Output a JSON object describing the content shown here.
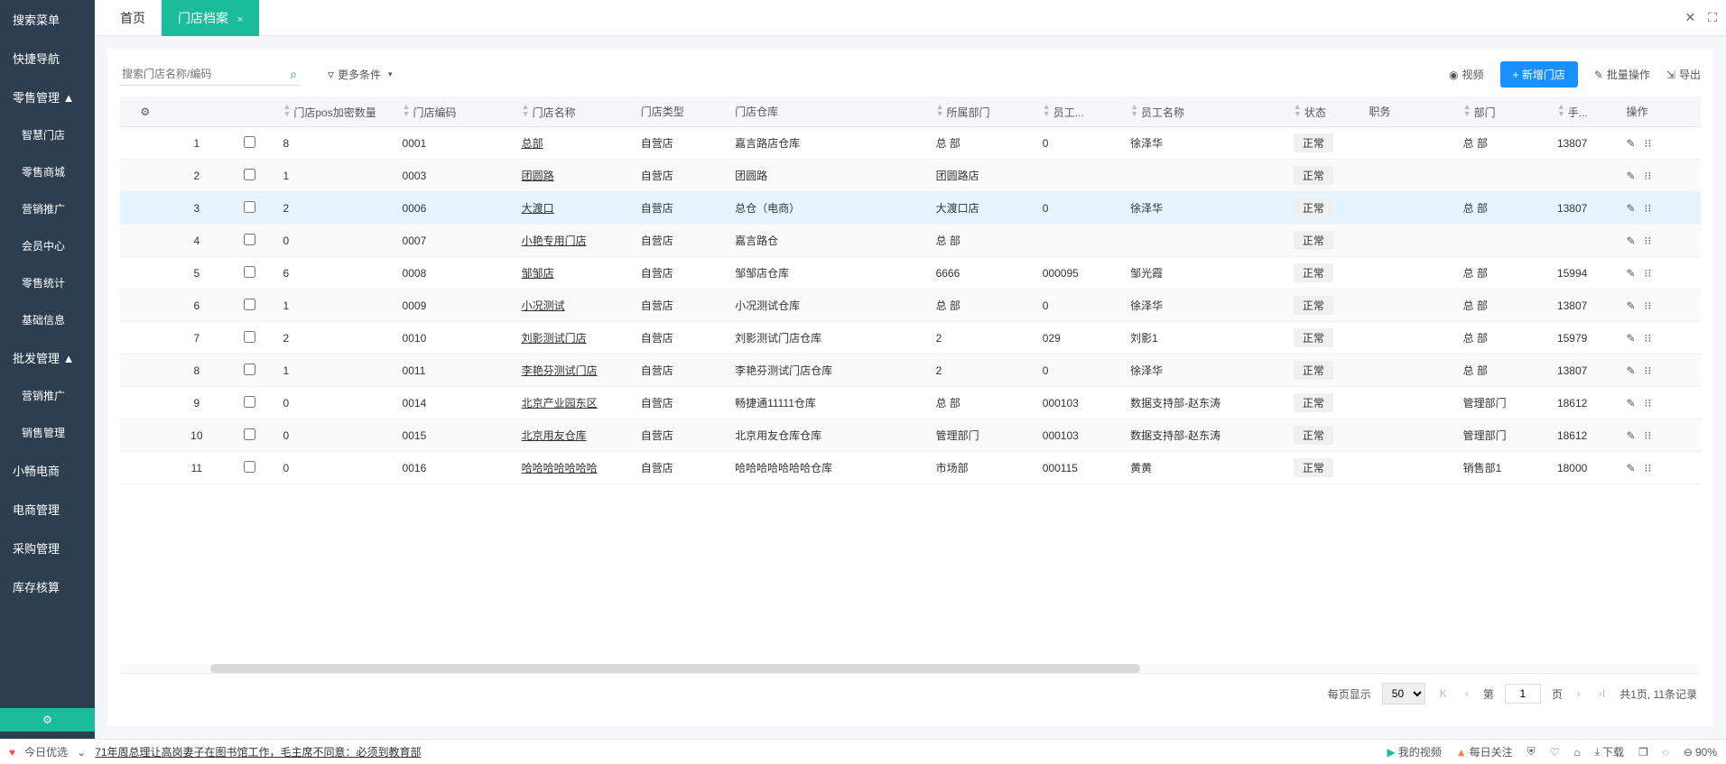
{
  "sidebar": {
    "items": [
      {
        "label": "搜索菜单",
        "sub": false
      },
      {
        "label": "快捷导航",
        "sub": false
      },
      {
        "label": "零售管理 ▲",
        "sub": false
      },
      {
        "label": "智慧门店",
        "sub": true
      },
      {
        "label": "零售商城",
        "sub": true
      },
      {
        "label": "营销推广",
        "sub": true
      },
      {
        "label": "会员中心",
        "sub": true
      },
      {
        "label": "零售统计",
        "sub": true
      },
      {
        "label": "基础信息",
        "sub": true
      },
      {
        "label": "批发管理 ▲",
        "sub": false
      },
      {
        "label": "营销推广",
        "sub": true
      },
      {
        "label": "销售管理",
        "sub": true
      },
      {
        "label": "小畅电商",
        "sub": false
      },
      {
        "label": "电商管理",
        "sub": false
      },
      {
        "label": "采购管理",
        "sub": false
      },
      {
        "label": "库存核算",
        "sub": false
      }
    ]
  },
  "tabs": {
    "home": "首页",
    "active": "门店档案"
  },
  "toolbar": {
    "search_placeholder": "搜索门店名称/编码",
    "more": "更多条件",
    "video": "视频",
    "add": "+ 新增门店",
    "batch": "批量操作",
    "export": "导出"
  },
  "columns": [
    "门店pos加密数量",
    "门店编码",
    "门店名称",
    "门店类型",
    "门店仓库",
    "所属部门",
    "员工...",
    "员工名称",
    "状态",
    "职务",
    "部门",
    "手...",
    "操作"
  ],
  "rows": [
    {
      "i": "1",
      "qty": "8",
      "code": "0001",
      "name": "总部",
      "type": "自营店",
      "wh": "嘉言路店仓库",
      "dept": "总 部",
      "eno": "0",
      "ename": "徐泽华",
      "status": "正常",
      "job": "",
      "dep2": "总 部",
      "phone": "13807"
    },
    {
      "i": "2",
      "qty": "1",
      "code": "0003",
      "name": "团圆路",
      "type": "自营店",
      "wh": "团圆路",
      "dept": "团圆路店",
      "eno": "",
      "ename": "",
      "status": "正常",
      "job": "",
      "dep2": "",
      "phone": ""
    },
    {
      "i": "3",
      "qty": "2",
      "code": "0006",
      "name": "大渡口",
      "type": "自营店",
      "wh": "总仓（电商）",
      "dept": "大渡口店",
      "eno": "0",
      "ename": "徐泽华",
      "status": "正常",
      "job": "",
      "dep2": "总 部",
      "phone": "13807",
      "hl": true
    },
    {
      "i": "4",
      "qty": "0",
      "code": "0007",
      "name": "小艳专用门店",
      "type": "自营店",
      "wh": "嘉言路仓",
      "dept": "总 部",
      "eno": "",
      "ename": "",
      "status": "正常",
      "job": "",
      "dep2": "",
      "phone": ""
    },
    {
      "i": "5",
      "qty": "6",
      "code": "0008",
      "name": "邹邹店",
      "type": "自营店",
      "wh": "邹邹店仓库",
      "dept": "6666",
      "eno": "000095",
      "ename": "邹光霞",
      "status": "正常",
      "job": "",
      "dep2": "总 部",
      "phone": "15994"
    },
    {
      "i": "6",
      "qty": "1",
      "code": "0009",
      "name": "小况测试",
      "type": "自营店",
      "wh": "小况测试仓库",
      "dept": "总 部",
      "eno": "0",
      "ename": "徐泽华",
      "status": "正常",
      "job": "",
      "dep2": "总 部",
      "phone": "13807"
    },
    {
      "i": "7",
      "qty": "2",
      "code": "0010",
      "name": "刘影测试门店",
      "type": "自营店",
      "wh": "刘影测试门店仓库",
      "dept": "2",
      "eno": "029",
      "ename": "刘影1",
      "status": "正常",
      "job": "",
      "dep2": "总 部",
      "phone": "15979"
    },
    {
      "i": "8",
      "qty": "1",
      "code": "0011",
      "name": "李艳芬测试门店",
      "type": "自营店",
      "wh": "李艳芬测试门店仓库",
      "dept": "2",
      "eno": "0",
      "ename": "徐泽华",
      "status": "正常",
      "job": "",
      "dep2": "总 部",
      "phone": "13807"
    },
    {
      "i": "9",
      "qty": "0",
      "code": "0014",
      "name": "北京产业园东区",
      "type": "自营店",
      "wh": "畅捷通11111仓库",
      "dept": "总 部",
      "eno": "000103",
      "ename": "数据支持部-赵东涛",
      "status": "正常",
      "job": "",
      "dep2": "管理部门",
      "phone": "18612"
    },
    {
      "i": "10",
      "qty": "0",
      "code": "0015",
      "name": "北京用友仓库",
      "type": "自营店",
      "wh": "北京用友仓库仓库",
      "dept": "管理部门",
      "eno": "000103",
      "ename": "数据支持部-赵东涛",
      "status": "正常",
      "job": "",
      "dep2": "管理部门",
      "phone": "18612"
    },
    {
      "i": "11",
      "qty": "0",
      "code": "0016",
      "name": "哈哈哈哈哈哈哈",
      "type": "自营店",
      "wh": "哈哈哈哈哈哈哈仓库",
      "dept": "市场部",
      "eno": "000115",
      "ename": "黄黄",
      "status": "正常",
      "job": "",
      "dep2": "销售部1",
      "phone": "18000"
    }
  ],
  "pager": {
    "per_label": "每页显示",
    "per_value": "50",
    "page_label_pre": "第",
    "page_value": "1",
    "page_label_post": "页",
    "summary": "共1页, 11条记录"
  },
  "footer": {
    "today": "今日优选",
    "news": "71年周总理让高岗妻子在图书馆工作，毛主席不同意：必须到教育部",
    "my_video": "我的视频",
    "daily": "每日关注",
    "download": "下载",
    "zoom": "90%"
  }
}
